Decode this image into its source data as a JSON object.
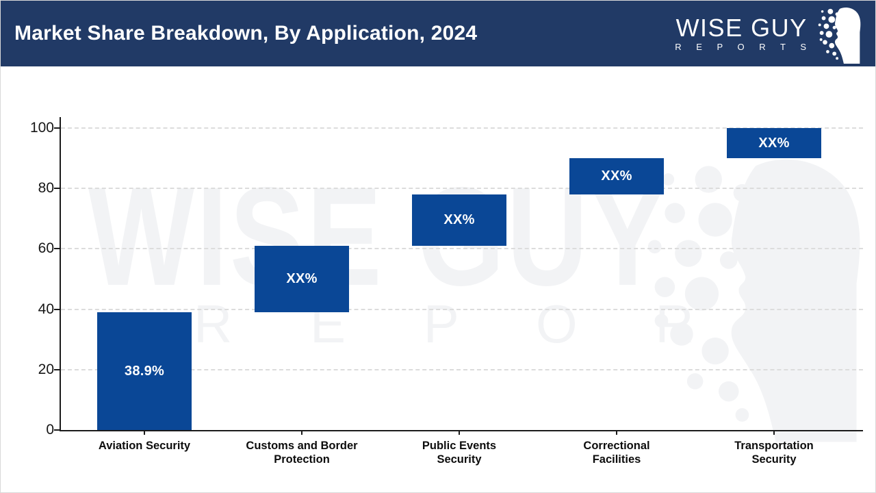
{
  "header": {
    "title": "Market Share Breakdown, By Application, 2024",
    "brand": {
      "line1": "WISE GUY",
      "line2": "R E P O R T S"
    }
  },
  "watermark": {
    "line1": "WISE GUY",
    "line2": "R E P O R T S"
  },
  "colors": {
    "header_bg": "#213a66",
    "bar": "#0a4796",
    "grid": "#dcdcdc",
    "axis": "#1a1a1a",
    "watermark": "#f2f3f5",
    "bar_label_text": "#ffffff",
    "title_text": "#ffffff"
  },
  "chart_data": {
    "type": "bar",
    "subtype": "waterfall",
    "title": "Market Share Breakdown, By Application, 2024",
    "unit": "%",
    "ylim": [
      0,
      100
    ],
    "yticks": [
      0,
      20,
      40,
      60,
      80,
      100
    ],
    "grid": "horizontal-dashed",
    "legend": "none",
    "bars": [
      {
        "category": "Aviation Security",
        "category_lines": "Aviation Security",
        "start": 0,
        "end": 38.9,
        "value": 38.9,
        "label": "38.9%"
      },
      {
        "category": "Customs and Border Protection",
        "category_lines": "Customs and Border\nProtection",
        "start": 38.9,
        "end": 61.0,
        "value": 22.1,
        "label": "XX%"
      },
      {
        "category": "Public Events Security",
        "category_lines": "Public Events\nSecurity",
        "start": 61.0,
        "end": 78.0,
        "value": 17.0,
        "label": "XX%"
      },
      {
        "category": "Correctional Facilities",
        "category_lines": "Correctional\nFacilities",
        "start": 78.0,
        "end": 90.0,
        "value": 12.0,
        "label": "XX%"
      },
      {
        "category": "Transportation Security",
        "category_lines": "Transportation\nSecurity",
        "start": 90.0,
        "end": 100.0,
        "value": 10.0,
        "label": "XX%"
      }
    ]
  }
}
